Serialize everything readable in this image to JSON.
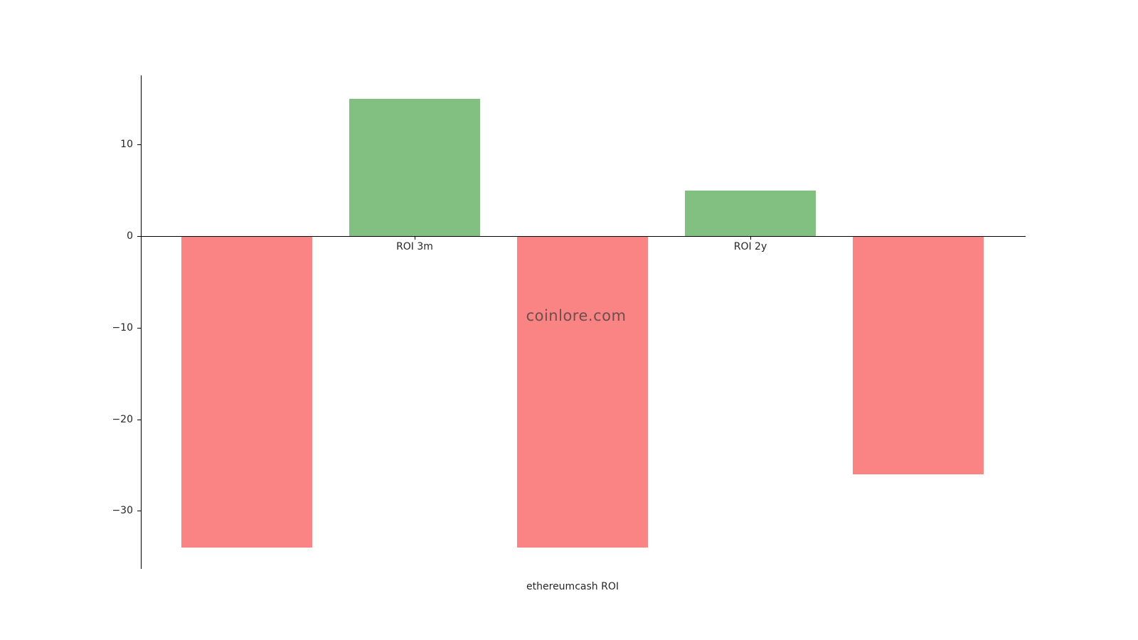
{
  "chart_data": {
    "type": "bar",
    "title": "ethereumcash ROI",
    "watermark": "coinlore.com",
    "categories": [
      "",
      "ROI 3m",
      "",
      "ROI 2y",
      ""
    ],
    "values": [
      -34,
      15,
      -34,
      5,
      -26
    ],
    "yticks": [
      10,
      0,
      -10,
      -20,
      -30
    ],
    "ylim": [
      -36.5,
      17.5
    ],
    "xlabel": "ethereumcash ROI",
    "ylabel": "",
    "grid": false,
    "legend": null,
    "colors": {
      "positive_bar": "#81c081",
      "negative_bar": "#fa8484",
      "axis": "#000000",
      "text": "#262626",
      "watermark_text": "#373737"
    }
  }
}
